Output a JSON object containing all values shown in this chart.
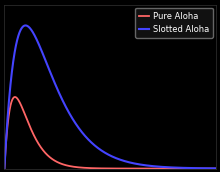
{
  "title": "",
  "xlabel": "",
  "ylabel": "",
  "background_color": "#000000",
  "axes_color": "#000000",
  "tick_color": "#000000",
  "legend_entries": [
    "Pure Aloha",
    "Slotted Aloha"
  ],
  "pure_aloha_color": "#ff6666",
  "slotted_aloha_color": "#4444ff",
  "pure_aloha_linewidth": 1.3,
  "slotted_aloha_linewidth": 1.5,
  "g_min": 0.0,
  "g_max": 10.0,
  "g_steps": 3000,
  "xlim": [
    0,
    10
  ],
  "ylim": [
    0,
    0.42
  ],
  "legend_fontsize": 6.0,
  "legend_bg": "#111111",
  "legend_text_color": "#ffffff",
  "legend_edge_color": "#666666",
  "spine_color": "#333333",
  "figsize": [
    2.2,
    1.72
  ],
  "dpi": 100
}
